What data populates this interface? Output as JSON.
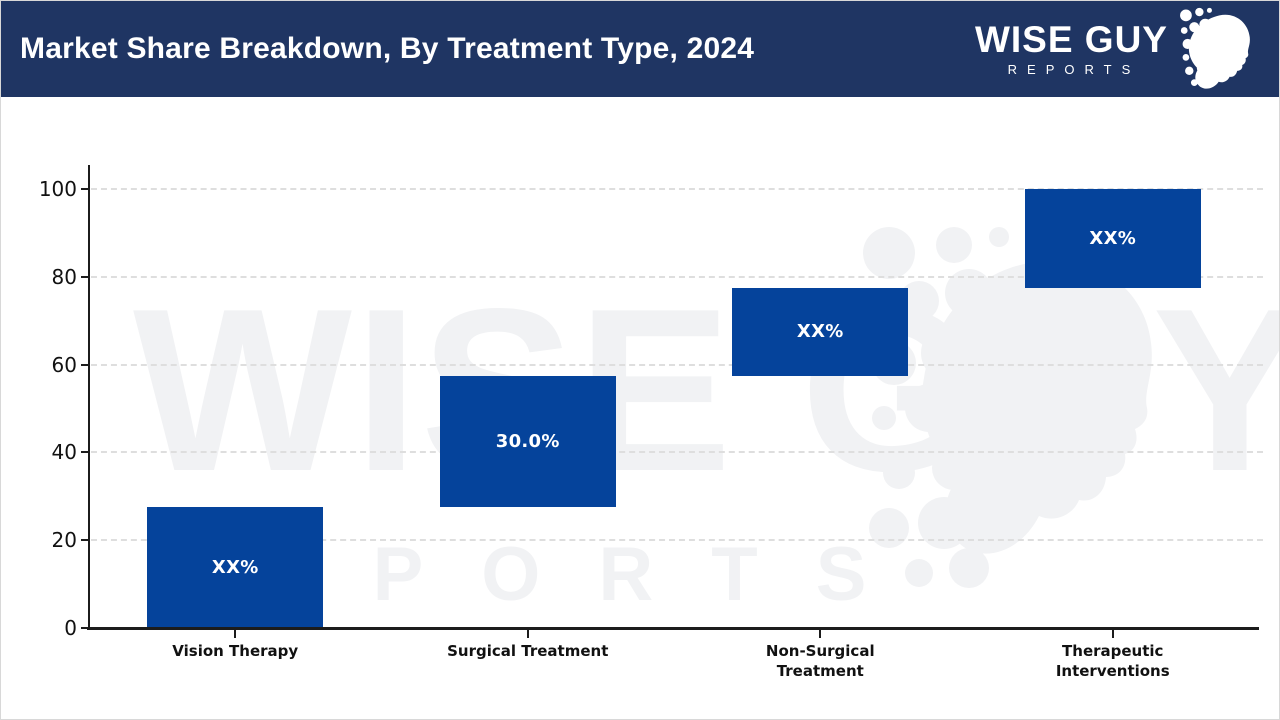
{
  "header": {
    "title": "Market Share Breakdown, By Treatment Type, 2024",
    "background_color": "#1f3563",
    "logo": {
      "line1": "WISE GUY",
      "line2": "REPORTS"
    }
  },
  "watermark": {
    "line1": "WISE GUY",
    "line2": "REPORTS"
  },
  "chart_data": {
    "type": "bar",
    "subtype": "waterfall",
    "title": "Market Share Breakdown, By Treatment Type, 2024",
    "categories": [
      "Vision Therapy",
      "Surgical Treatment",
      "Non-Surgical Treatment",
      "Therapeutic Interventions"
    ],
    "x_tick_labels": [
      "Vision Therapy",
      "Surgical Treatment",
      "Non-Surgical\nTreatment",
      "Therapeutic\nInterventions"
    ],
    "series": [
      {
        "name": "Market Share (%)",
        "segments": [
          {
            "category": "Vision Therapy",
            "start": 0,
            "end": 27.5,
            "label": "XX%"
          },
          {
            "category": "Surgical Treatment",
            "start": 27.5,
            "end": 57.5,
            "label": "30.0%"
          },
          {
            "category": "Non-Surgical Treatment",
            "start": 57.5,
            "end": 77.5,
            "label": "XX%"
          },
          {
            "category": "Therapeutic Interventions",
            "start": 77.5,
            "end": 100,
            "label": "XX%"
          }
        ]
      }
    ],
    "ylabel": "",
    "xlabel": "",
    "ylim": [
      0,
      105.5
    ],
    "yticks": [
      0,
      20,
      40,
      60,
      80,
      100
    ],
    "ytick_labels": [
      "0",
      "20",
      "40",
      "60",
      "80",
      "100"
    ],
    "grid": "dashed-horizontal",
    "legend": "none",
    "bar_color": "#05439b",
    "value_labels_inside_bars": true
  }
}
